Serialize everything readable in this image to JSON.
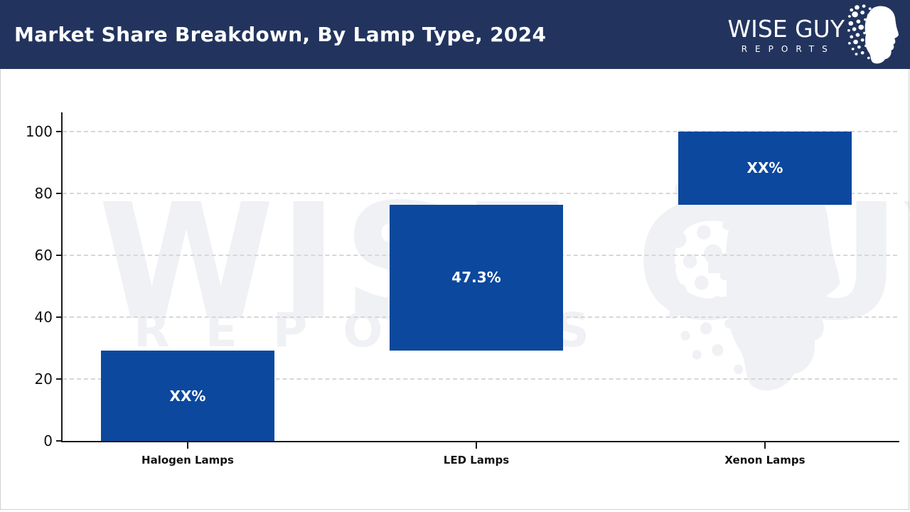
{
  "header": {
    "title": "Market Share Breakdown, By Lamp Type, 2024",
    "logo": {
      "line1": "WISE GUY",
      "line2": "REPORTS"
    }
  },
  "watermark": {
    "line1": "WISE GUY",
    "line2": "REPORTS"
  },
  "chart_data": {
    "type": "bar",
    "subtype": "waterfall",
    "title": "Market Share Breakdown, By Lamp Type, 2024",
    "categories": [
      "Halogen Lamps",
      "LED Lamps",
      "Xenon Lamps"
    ],
    "bars": [
      {
        "category": "Halogen Lamps",
        "start": 0,
        "end": 29.1,
        "label": "XX%"
      },
      {
        "category": "LED Lamps",
        "start": 29.1,
        "end": 76.4,
        "label": "47.3%"
      },
      {
        "category": "Xenon Lamps",
        "start": 76.4,
        "end": 100,
        "label": "XX%"
      }
    ],
    "xlabel": "",
    "ylabel": "",
    "ylim": [
      0,
      105.7
    ],
    "yticks": [
      0,
      20,
      40,
      60,
      80,
      100
    ],
    "grid": "horizontal-dashed",
    "legend": null,
    "colors": {
      "bar": "#0b489e",
      "bar_label": "#ffffff",
      "grid": "#d7d7d7",
      "axis": "#1a1a1a",
      "header_bg": "#22345E",
      "watermark": "#f0f1f4"
    }
  }
}
